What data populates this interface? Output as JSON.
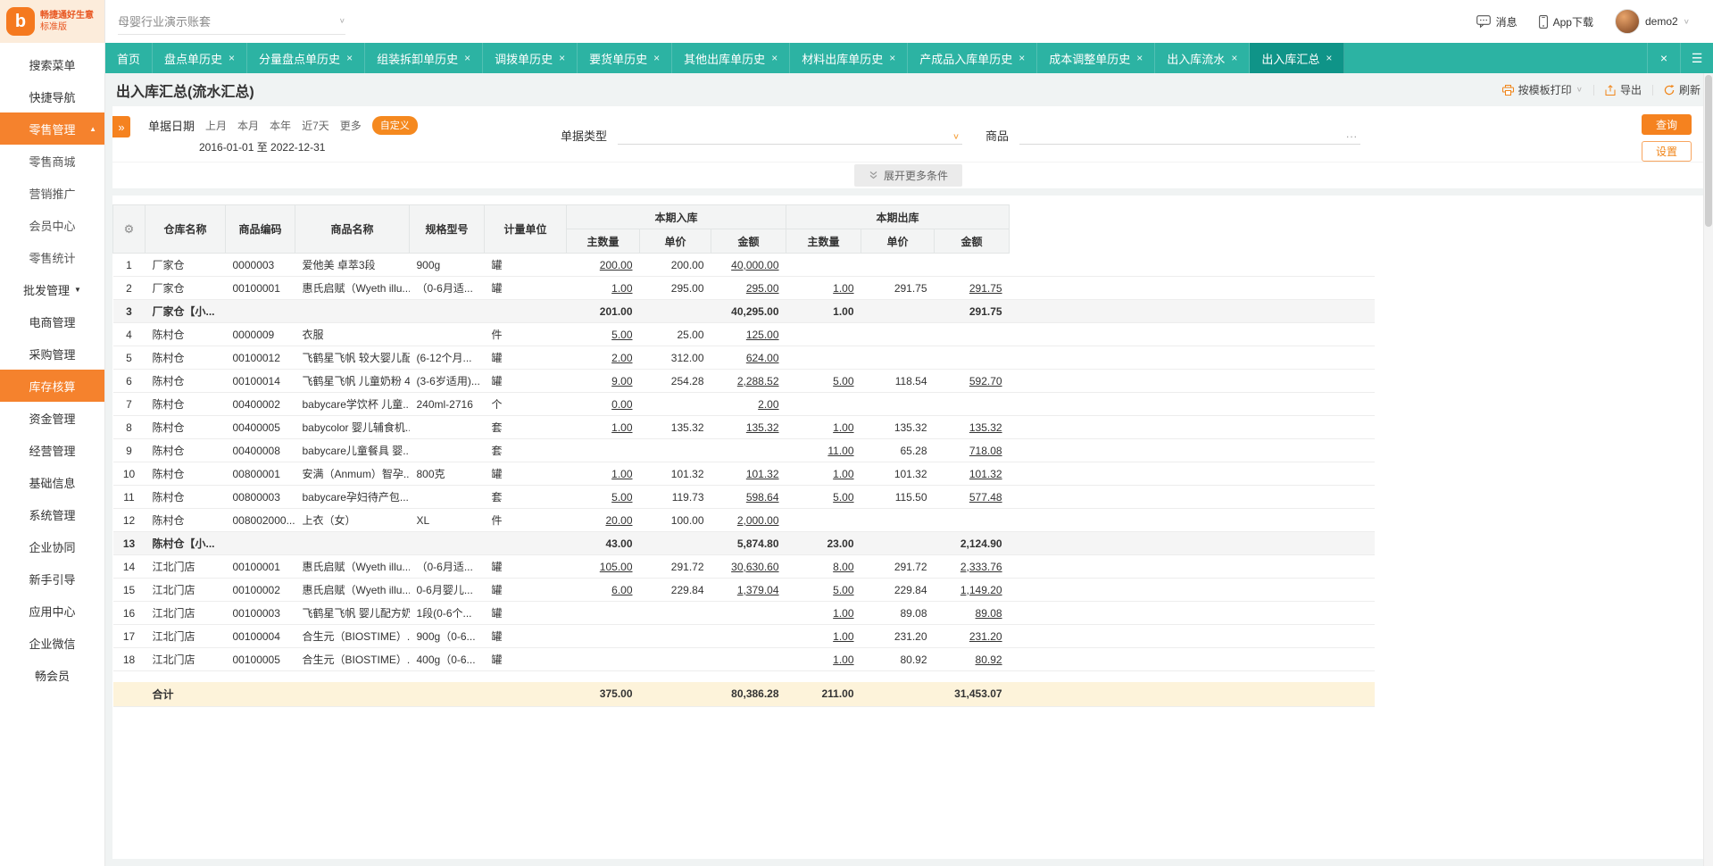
{
  "brand": {
    "logo_glyph": "b",
    "name": "畅捷通好生意",
    "edition": "标准版"
  },
  "topbar": {
    "account": "母婴行业演示账套",
    "messages_label": "消息",
    "app_download_label": "App下载",
    "username": "demo2"
  },
  "sidebar": {
    "items": [
      {
        "label": "搜索菜单",
        "style": ""
      },
      {
        "label": "快捷导航",
        "style": ""
      },
      {
        "label": "零售管理",
        "style": "active-header",
        "arrow": "up"
      },
      {
        "label": "零售商城",
        "style": "sub"
      },
      {
        "label": "营销推广",
        "style": "sub"
      },
      {
        "label": "会员中心",
        "style": "sub"
      },
      {
        "label": "零售统计",
        "style": "sub"
      },
      {
        "label": "批发管理",
        "style": "",
        "arrow": "down"
      },
      {
        "label": "电商管理",
        "style": ""
      },
      {
        "label": "采购管理",
        "style": ""
      },
      {
        "label": "库存核算",
        "style": "active"
      },
      {
        "label": "资金管理",
        "style": ""
      },
      {
        "label": "经营管理",
        "style": ""
      },
      {
        "label": "基础信息",
        "style": ""
      },
      {
        "label": "系统管理",
        "style": ""
      },
      {
        "label": "企业协同",
        "style": ""
      },
      {
        "label": "新手引导",
        "style": ""
      },
      {
        "label": "应用中心",
        "style": ""
      },
      {
        "label": "企业微信",
        "style": ""
      },
      {
        "label": "畅会员",
        "style": ""
      }
    ]
  },
  "tabbar": {
    "tabs": [
      {
        "label": "首页",
        "closable": false,
        "active": false
      },
      {
        "label": "盘点单历史",
        "closable": true,
        "active": false
      },
      {
        "label": "分量盘点单历史",
        "closable": true,
        "active": false
      },
      {
        "label": "组装拆卸单历史",
        "closable": true,
        "active": false
      },
      {
        "label": "调拨单历史",
        "closable": true,
        "active": false
      },
      {
        "label": "要货单历史",
        "closable": true,
        "active": false
      },
      {
        "label": "其他出库单历史",
        "closable": true,
        "active": false
      },
      {
        "label": "材料出库单历史",
        "closable": true,
        "active": false
      },
      {
        "label": "产成品入库单历史",
        "closable": true,
        "active": false
      },
      {
        "label": "成本调整单历史",
        "closable": true,
        "active": false
      },
      {
        "label": "出入库流水",
        "closable": true,
        "active": false
      },
      {
        "label": "出入库汇总",
        "closable": true,
        "active": true
      }
    ],
    "close_all_icon": "×",
    "tab_list_icon": "☰"
  },
  "page": {
    "title": "出入库汇总(流水汇总)",
    "print_label": "按模板打印",
    "export_label": "导出",
    "refresh_label": "刷新"
  },
  "filters": {
    "collapse_icon": "»",
    "date_label": "单据日期",
    "quick_options": [
      "上月",
      "本月",
      "本年",
      "近7天",
      "更多"
    ],
    "custom_label": "自定义",
    "date_range": "2016-01-01 至 2022-12-31",
    "doc_type_label": "单据类型",
    "product_label": "商品",
    "product_more_icon": "...",
    "search_label": "查询",
    "settings_label": "设置",
    "expand_more_label": "展开更多条件"
  },
  "table": {
    "headers": {
      "gear_icon": "⚙",
      "warehouse": "仓库名称",
      "code": "商品编码",
      "name": "商品名称",
      "spec": "规格型号",
      "unit": "计量单位",
      "inbound_group": "本期入库",
      "outbound_group": "本期出库",
      "main_qty": "主数量",
      "price": "单价",
      "amount": "金额"
    },
    "rows": [
      {
        "num": "1",
        "type": "data",
        "warehouse": "厂家仓",
        "code": "0000003",
        "name": "爱他美 卓萃3段",
        "spec": "900g",
        "unit": "罐",
        "in": [
          "200.00",
          "200.00",
          "40,000.00"
        ],
        "out": [
          "",
          "",
          ""
        ]
      },
      {
        "num": "2",
        "type": "data",
        "warehouse": "厂家仓",
        "code": "00100001",
        "name": "惠氏启赋（Wyeth illu...",
        "spec": "（0-6月适...",
        "unit": "罐",
        "in": [
          "1.00",
          "295.00",
          "295.00"
        ],
        "out": [
          "1.00",
          "291.75",
          "291.75"
        ]
      },
      {
        "num": "3",
        "type": "subtotal",
        "warehouse": "厂家仓【小...",
        "code": "",
        "name": "",
        "spec": "",
        "unit": "",
        "in": [
          "201.00",
          "",
          "40,295.00"
        ],
        "out": [
          "1.00",
          "",
          "291.75"
        ]
      },
      {
        "num": "4",
        "type": "data",
        "warehouse": "陈村仓",
        "code": "0000009",
        "name": "衣服",
        "spec": "",
        "unit": "件",
        "in": [
          "5.00",
          "25.00",
          "125.00"
        ],
        "out": [
          "",
          "",
          ""
        ]
      },
      {
        "num": "5",
        "type": "data",
        "warehouse": "陈村仓",
        "code": "00100012",
        "name": "飞鹤星飞帆 较大婴儿配...",
        "spec": "(6-12个月...",
        "unit": "罐",
        "in": [
          "2.00",
          "312.00",
          "624.00"
        ],
        "out": [
          "",
          "",
          ""
        ]
      },
      {
        "num": "6",
        "type": "data",
        "warehouse": "陈村仓",
        "code": "00100014",
        "name": "飞鹤星飞帆 儿童奶粉 4...",
        "spec": "(3-6岁适用)...",
        "unit": "罐",
        "in": [
          "9.00",
          "254.28",
          "2,288.52"
        ],
        "out": [
          "5.00",
          "118.54",
          "592.70"
        ]
      },
      {
        "num": "7",
        "type": "data",
        "warehouse": "陈村仓",
        "code": "00400002",
        "name": "babycare学饮杯 儿童...",
        "spec": "240ml-2716",
        "unit": "个",
        "in": [
          "0.00",
          "",
          "2.00"
        ],
        "out": [
          "",
          "",
          ""
        ]
      },
      {
        "num": "8",
        "type": "data",
        "warehouse": "陈村仓",
        "code": "00400005",
        "name": "babycolor 婴儿辅食机...",
        "spec": "",
        "unit": "套",
        "in": [
          "1.00",
          "135.32",
          "135.32"
        ],
        "out": [
          "1.00",
          "135.32",
          "135.32"
        ]
      },
      {
        "num": "9",
        "type": "data",
        "warehouse": "陈村仓",
        "code": "00400008",
        "name": "babycare儿童餐具 婴...",
        "spec": "",
        "unit": "套",
        "in": [
          "",
          "",
          ""
        ],
        "out": [
          "11.00",
          "65.28",
          "718.08"
        ]
      },
      {
        "num": "10",
        "type": "data",
        "warehouse": "陈村仓",
        "code": "00800001",
        "name": "安满（Anmum）智孕...",
        "spec": "800克",
        "unit": "罐",
        "in": [
          "1.00",
          "101.32",
          "101.32"
        ],
        "out": [
          "1.00",
          "101.32",
          "101.32"
        ]
      },
      {
        "num": "11",
        "type": "data",
        "warehouse": "陈村仓",
        "code": "00800003",
        "name": "babycare孕妇待产包...",
        "spec": "",
        "unit": "套",
        "in": [
          "5.00",
          "119.73",
          "598.64"
        ],
        "out": [
          "5.00",
          "115.50",
          "577.48"
        ]
      },
      {
        "num": "12",
        "type": "data",
        "warehouse": "陈村仓",
        "code": "008002000...",
        "name": "上衣（女）",
        "spec": "XL",
        "unit": "件",
        "in": [
          "20.00",
          "100.00",
          "2,000.00"
        ],
        "out": [
          "",
          "",
          ""
        ]
      },
      {
        "num": "13",
        "type": "subtotal",
        "warehouse": "陈村仓【小...",
        "code": "",
        "name": "",
        "spec": "",
        "unit": "",
        "in": [
          "43.00",
          "",
          "5,874.80"
        ],
        "out": [
          "23.00",
          "",
          "2,124.90"
        ]
      },
      {
        "num": "14",
        "type": "data",
        "warehouse": "江北门店",
        "code": "00100001",
        "name": "惠氏启赋（Wyeth illu...",
        "spec": "（0-6月适...",
        "unit": "罐",
        "in": [
          "105.00",
          "291.72",
          "30,630.60"
        ],
        "out": [
          "8.00",
          "291.72",
          "2,333.76"
        ]
      },
      {
        "num": "15",
        "type": "data",
        "warehouse": "江北门店",
        "code": "00100002",
        "name": "惠氏启赋（Wyeth illu...",
        "spec": "0-6月婴儿...",
        "unit": "罐",
        "in": [
          "6.00",
          "229.84",
          "1,379.04"
        ],
        "out": [
          "5.00",
          "229.84",
          "1,149.20"
        ]
      },
      {
        "num": "16",
        "type": "data",
        "warehouse": "江北门店",
        "code": "00100003",
        "name": "飞鹤星飞帆 婴儿配方奶...",
        "spec": "1段(0-6个...",
        "unit": "罐",
        "in": [
          "",
          "",
          ""
        ],
        "out": [
          "1.00",
          "89.08",
          "89.08"
        ]
      },
      {
        "num": "17",
        "type": "data",
        "warehouse": "江北门店",
        "code": "00100004",
        "name": "合生元（BIOSTIME）...",
        "spec": "900g（0-6...",
        "unit": "罐",
        "in": [
          "",
          "",
          ""
        ],
        "out": [
          "1.00",
          "231.20",
          "231.20"
        ]
      },
      {
        "num": "18",
        "type": "data",
        "warehouse": "江北门店",
        "code": "00100005",
        "name": "合生元（BIOSTIME）...",
        "spec": "400g（0-6...",
        "unit": "罐",
        "in": [
          "",
          "",
          ""
        ],
        "out": [
          "1.00",
          "80.92",
          "80.92"
        ]
      },
      {
        "num": "",
        "type": "total",
        "warehouse": "合计",
        "code": "",
        "name": "",
        "spec": "",
        "unit": "",
        "in": [
          "375.00",
          "",
          "80,386.28"
        ],
        "out": [
          "211.00",
          "",
          "31,453.07"
        ]
      }
    ]
  },
  "colors": {
    "teal": "#2cb3a3",
    "teal_active_tab": "#0f9488",
    "orange": "#f5821f",
    "subtotal_row_bg": "#f5f5f5",
    "total_row_bg": "#fdf3da"
  }
}
